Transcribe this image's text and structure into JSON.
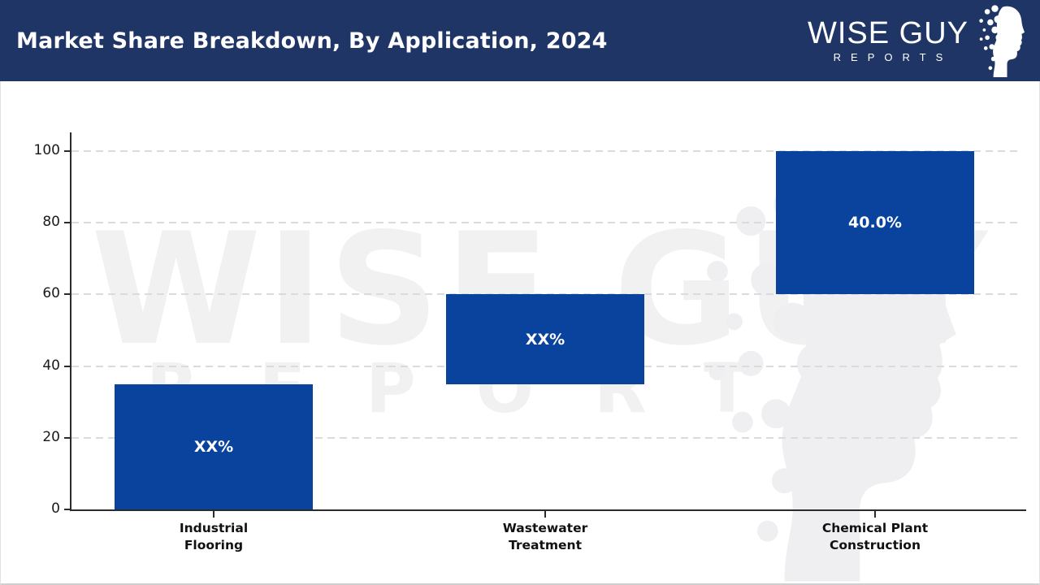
{
  "header": {
    "title": "Market Share Breakdown, By Application, 2024",
    "logo": {
      "wordmark": "WISE GUY",
      "subtext": "REPORTS"
    }
  },
  "watermark": {
    "wordmark": "WISE GUY",
    "subtext": "REPORTS"
  },
  "colors": {
    "header_bg": "#1f3565",
    "bar": "#09439d",
    "bar_label_text": "#ffffff",
    "grid": "#dbdbdb",
    "axis": "#2b2b2b",
    "tick_text": "#1a1a1a",
    "watermark": "#f1f1f2",
    "watermark_face": "#efeff1"
  },
  "chart_data": {
    "type": "bar",
    "subtype": "floating-segment-waterfall",
    "title": "Market Share Breakdown, By Application, 2024",
    "categories": [
      "Industrial\nFlooring",
      "Wastewater\nTreatment",
      "Chemical Plant\nConstruction"
    ],
    "segments": [
      {
        "category": "Industrial Flooring",
        "start": 0,
        "end": 35,
        "label": "XX%"
      },
      {
        "category": "Wastewater Treatment",
        "start": 35,
        "end": 60,
        "label": "XX%"
      },
      {
        "category": "Chemical Plant Construction",
        "start": 60,
        "end": 100,
        "label": "40.0%"
      }
    ],
    "xlabel": "",
    "ylabel": "",
    "ylim": [
      0,
      100
    ],
    "yticks": [
      0,
      20,
      40,
      60,
      80,
      100
    ],
    "grid": "horizontal-dashed",
    "legend": "none"
  }
}
